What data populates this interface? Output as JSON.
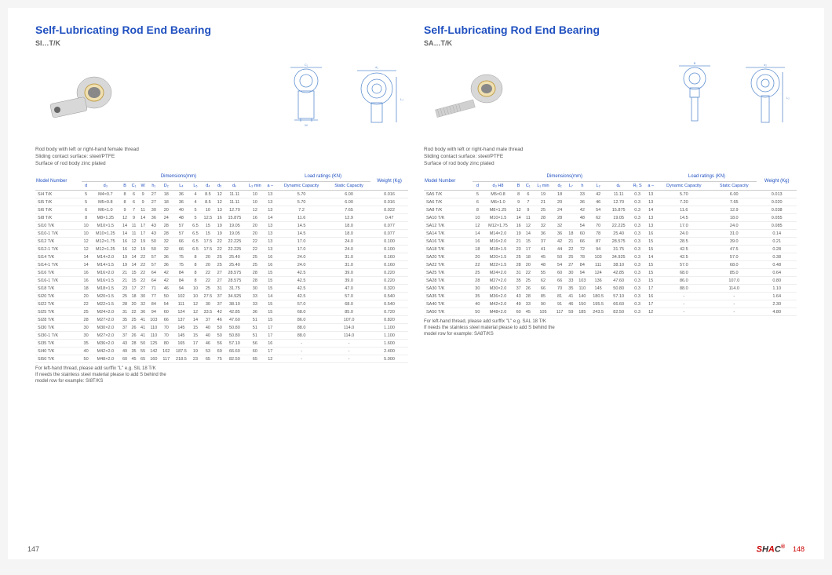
{
  "left": {
    "title": "Self-Lubricating Rod End Bearing",
    "subtitle": "SI…T/K",
    "notes": [
      "Rod body with left or right-hand female thread",
      "Sliding contact surface: steel/PTFE",
      "Surface of rod body zinc plated"
    ],
    "header_groups": [
      "Model Number",
      "Dimensions(mm)",
      "Load ratings (KN)",
      "Weight (Kg)"
    ],
    "columns": [
      "",
      "d",
      "d₃",
      "B",
      "C₁",
      "W",
      "h₁",
      "D₂",
      "L₄",
      "L₅",
      "d₄",
      "d₅",
      "dₖ",
      "L₃ min",
      "a –",
      "Dynamic Capacity",
      "Static Capacity",
      ""
    ],
    "rows": [
      [
        "SI4 T/K",
        "5",
        "M4×0.7",
        "8",
        "6",
        "9",
        "27",
        "18",
        "36",
        "4",
        "8.5",
        "12",
        "11.11",
        "10",
        "13",
        "5.70",
        "6.00",
        "0.016"
      ],
      [
        "SI5 T/K",
        "5",
        "M5×0.8",
        "8",
        "6",
        "9",
        "27",
        "18",
        "36",
        "4",
        "8.5",
        "12",
        "11.11",
        "10",
        "13",
        "5.70",
        "6.00",
        "0.016"
      ],
      [
        "SI6 T/K",
        "6",
        "M6×1.0",
        "9",
        "7",
        "11",
        "30",
        "20",
        "40",
        "5",
        "10",
        "13",
        "12.70",
        "12",
        "13",
        "7.2",
        "7.65",
        "0.022"
      ],
      [
        "SI8 T/K",
        "8",
        "M8×1.25",
        "12",
        "9",
        "14",
        "36",
        "24",
        "48",
        "5",
        "12.5",
        "16",
        "15.875",
        "16",
        "14",
        "11.6",
        "12.9",
        "0.47"
      ],
      [
        "SI10 T/K",
        "10",
        "M10×1.5",
        "14",
        "11",
        "17",
        "43",
        "28",
        "57",
        "6.5",
        "15",
        "19",
        "19.05",
        "20",
        "13",
        "14.5",
        "18.0",
        "0.077"
      ],
      [
        "SI10-1 T/K",
        "10",
        "M10×1.25",
        "14",
        "11",
        "17",
        "43",
        "28",
        "57",
        "6.5",
        "15",
        "19",
        "19.05",
        "20",
        "13",
        "14.5",
        "18.0",
        "0.077"
      ],
      [
        "SI12 T/K",
        "12",
        "M12×1.75",
        "16",
        "12",
        "19",
        "50",
        "32",
        "66",
        "6.5",
        "17.5",
        "22",
        "22.225",
        "22",
        "13",
        "17.0",
        "24.0",
        "0.100"
      ],
      [
        "SI12-1 T/K",
        "12",
        "M12×1.25",
        "16",
        "12",
        "19",
        "50",
        "32",
        "66",
        "6.5",
        "17.5",
        "22",
        "22.225",
        "22",
        "13",
        "17.0",
        "24.0",
        "0.100"
      ],
      [
        "SI14 T/K",
        "14",
        "M14×2.0",
        "19",
        "14",
        "22",
        "57",
        "36",
        "75",
        "8",
        "20",
        "25",
        "25.40",
        "25",
        "16",
        "24.0",
        "31.0",
        "0.160"
      ],
      [
        "SI14-1 T/K",
        "14",
        "M14×1.5",
        "19",
        "14",
        "22",
        "57",
        "36",
        "75",
        "8",
        "20",
        "25",
        "25.40",
        "25",
        "16",
        "24.0",
        "31.0",
        "0.160"
      ],
      [
        "SI16 T/K",
        "16",
        "M16×2.0",
        "21",
        "15",
        "22",
        "64",
        "42",
        "84",
        "8",
        "22",
        "27",
        "28.575",
        "28",
        "15",
        "42.5",
        "39.0",
        "0.220"
      ],
      [
        "SI16-1 T/K",
        "16",
        "M16×1.5",
        "21",
        "15",
        "22",
        "64",
        "42",
        "84",
        "8",
        "22",
        "27",
        "28.575",
        "28",
        "15",
        "42.5",
        "39.0",
        "0.220"
      ],
      [
        "SI18 T/K",
        "18",
        "M18×1.5",
        "23",
        "17",
        "27",
        "71",
        "46",
        "94",
        "10",
        "25",
        "31",
        "31.75",
        "30",
        "15",
        "42.5",
        "47.0",
        "0.320"
      ],
      [
        "SI20 T/K",
        "20",
        "M20×1.5",
        "25",
        "18",
        "30",
        "77",
        "50",
        "102",
        "10",
        "27.5",
        "37",
        "34.925",
        "33",
        "14",
        "42.5",
        "57.0",
        "0.540"
      ],
      [
        "SI22 T/K",
        "22",
        "M22×1.5",
        "28",
        "20",
        "32",
        "84",
        "54",
        "111",
        "12",
        "30",
        "37",
        "38.10",
        "33",
        "15",
        "57.0",
        "68.0",
        "0.540"
      ],
      [
        "SI25 T/K",
        "25",
        "M24×2.0",
        "31",
        "22",
        "36",
        "94",
        "60",
        "124",
        "12",
        "33.5",
        "42",
        "42.85",
        "36",
        "15",
        "68.0",
        "85.0",
        "0.720"
      ],
      [
        "SI28 T/K",
        "28",
        "M27×2.0",
        "35",
        "25",
        "41",
        "103",
        "66",
        "137",
        "14",
        "37",
        "46",
        "47.60",
        "51",
        "15",
        "86.0",
        "107.0",
        "0.820"
      ],
      [
        "SI30 T/K",
        "30",
        "M30×2.0",
        "37",
        "26",
        "41",
        "110",
        "70",
        "145",
        "15",
        "40",
        "50",
        "50.80",
        "51",
        "17",
        "88.0",
        "114.0",
        "1.100"
      ],
      [
        "SI30-1 T/K",
        "30",
        "M27×2.0",
        "37",
        "26",
        "41",
        "110",
        "70",
        "145",
        "15",
        "40",
        "50",
        "50.80",
        "51",
        "17",
        "88.0",
        "114.0",
        "1.100"
      ],
      [
        "SI35 T/K",
        "35",
        "M36×2.0",
        "43",
        "28",
        "50",
        "125",
        "80",
        "165",
        "17",
        "46",
        "56",
        "57.10",
        "56",
        "16",
        "-",
        "-",
        "1.600"
      ],
      [
        "SI40 T/K",
        "40",
        "M42×2.0",
        "49",
        "35",
        "55",
        "142",
        "102",
        "187.5",
        "19",
        "53",
        "69",
        "66.60",
        "60",
        "17",
        "-",
        "-",
        "2.400"
      ],
      [
        "SI50 T/K",
        "50",
        "M48×2.0",
        "60",
        "45",
        "65",
        "160",
        "117",
        "218.5",
        "23",
        "65",
        "75",
        "82.50",
        "65",
        "12",
        "-",
        "-",
        "5.000"
      ]
    ],
    "footnote": "For left-hand thread, please add surffix \"L\" e.g. SIL 18 T/K\nIf needs the stainless steel material please to add S behind the\nmodel row for example: SI8T/KS"
  },
  "right": {
    "title": "Self-Lubricating Rod End Bearing",
    "subtitle": "SA…T/K",
    "notes": [
      "Rod body with left or right-hand male thread",
      "Sliding contact surface: steel/PTFE",
      "Surface of rod body zinc plated"
    ],
    "header_groups": [
      "Model Number",
      "Dimensions(mm)",
      "Load ratings (KN)",
      "Weight (Kg)"
    ],
    "columns": [
      "",
      "d",
      "d₃ H8",
      "B",
      "C₁",
      "L₁ min",
      "d₂",
      "L₇",
      "h",
      "L₂",
      "dₖ",
      "R₁ S",
      "a –",
      "Dynamic Capacity",
      "Static Capacity",
      ""
    ],
    "rows": [
      [
        "SA5 T/K",
        "5",
        "M5×0.8",
        "8",
        "6",
        "19",
        "18",
        "",
        "33",
        "42",
        "11.11",
        "0.3",
        "13",
        "5.70",
        "6.00",
        "0.013"
      ],
      [
        "SA6 T/K",
        "6",
        "M6×1.0",
        "9",
        "7",
        "21",
        "20",
        "",
        "36",
        "46",
        "12.70",
        "0.3",
        "13",
        "7.20",
        "7.65",
        "0.020"
      ],
      [
        "SA8 T/K",
        "8",
        "M8×1.25",
        "12",
        "9",
        "25",
        "24",
        "",
        "42",
        "54",
        "15.875",
        "0.3",
        "14",
        "11.6",
        "12.9",
        "0.038"
      ],
      [
        "SA10 T/K",
        "10",
        "M10×1.5",
        "14",
        "11",
        "28",
        "28",
        "",
        "48",
        "62",
        "19.05",
        "0.3",
        "13",
        "14.5",
        "18.0",
        "0.055"
      ],
      [
        "SA12 T/K",
        "12",
        "M12×1.75",
        "16",
        "12",
        "32",
        "32",
        "",
        "54",
        "70",
        "22.225",
        "0.3",
        "13",
        "17.0",
        "24.0",
        "0.085"
      ],
      [
        "SA14 T/K",
        "14",
        "M14×2.0",
        "19",
        "14",
        "36",
        "36",
        "18",
        "60",
        "78",
        "25.40",
        "0.3",
        "16",
        "24.0",
        "31.0",
        "0.14"
      ],
      [
        "SA16 T/K",
        "16",
        "M16×2.0",
        "21",
        "15",
        "37",
        "42",
        "21",
        "66",
        "87",
        "28.575",
        "0.3",
        "15",
        "28.5",
        "39.0",
        "0.21"
      ],
      [
        "SA18 T/K",
        "18",
        "M18×1.5",
        "23",
        "17",
        "41",
        "44",
        "22",
        "72",
        "94",
        "31.75",
        "0.3",
        "15",
        "42.5",
        "47.5",
        "0.28"
      ],
      [
        "SA20 T/K",
        "20",
        "M20×1.5",
        "25",
        "18",
        "45",
        "50",
        "25",
        "78",
        "103",
        "34.925",
        "0.3",
        "14",
        "42.5",
        "57.0",
        "0.38"
      ],
      [
        "SA22 T/K",
        "22",
        "M22×1.5",
        "28",
        "20",
        "48",
        "54",
        "27",
        "84",
        "111",
        "38.10",
        "0.3",
        "15",
        "57.0",
        "68.0",
        "0.48"
      ],
      [
        "SA25 T/K",
        "25",
        "M24×2.0",
        "31",
        "22",
        "55",
        "60",
        "30",
        "94",
        "124",
        "42.85",
        "0.3",
        "15",
        "68.0",
        "85.0",
        "0.64"
      ],
      [
        "SA28 T/K",
        "28",
        "M27×2.0",
        "35",
        "25",
        "62",
        "66",
        "33",
        "103",
        "136",
        "47.60",
        "0.3",
        "15",
        "86.0",
        "107.0",
        "0.80"
      ],
      [
        "SA30 T/K",
        "30",
        "M30×2.0",
        "37",
        "26",
        "66",
        "70",
        "35",
        "110",
        "145",
        "50.80",
        "0.3",
        "17",
        "88.0",
        "114.0",
        "1.10"
      ],
      [
        "SA35 T/K",
        "35",
        "M36×2.0",
        "43",
        "28",
        "85",
        "81",
        "41",
        "140",
        "180.5",
        "57.10",
        "0.3",
        "16",
        "-",
        "-",
        "1.64"
      ],
      [
        "SA40 T/K",
        "40",
        "M42×2.0",
        "49",
        "33",
        "90",
        "91",
        "46",
        "150",
        "195.5",
        "66.60",
        "0.3",
        "17",
        "-",
        "-",
        "2.30"
      ],
      [
        "SA50 T/K",
        "50",
        "M48×2.0",
        "60",
        "45",
        "105",
        "117",
        "59",
        "185",
        "243.5",
        "82.50",
        "0.3",
        "12",
        "-",
        "-",
        "4.80"
      ]
    ],
    "footnote": "For left-hand thread, please add surffix \"L\" e.g. SAL 18 T/K\nIf needs the stainless steel material please to add S behind the\nmodel row for example: SA8T/KS"
  },
  "page_left": "147",
  "page_right": "148",
  "logo": "SHAC"
}
